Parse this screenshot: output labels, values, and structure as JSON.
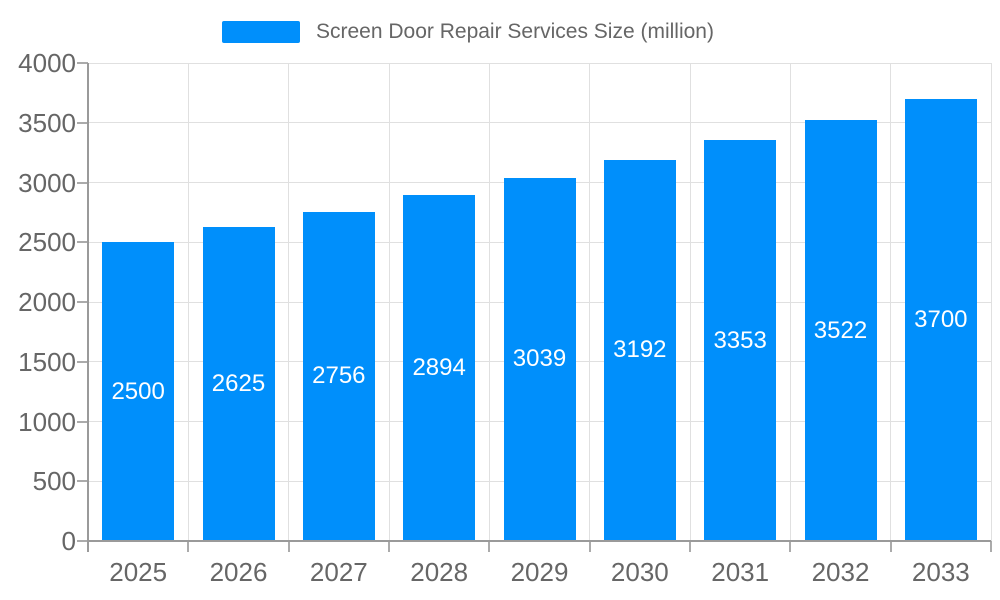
{
  "legend": {
    "series_label": "Screen Door Repair Services Size (million)"
  },
  "colors": {
    "bar": "#008FFB",
    "gridline": "#e0e0e0",
    "axis_line": "#9a9a9a",
    "tick": "#ababab",
    "axis_text": "#666666",
    "bar_label_text": "#ffffff",
    "background": "#ffffff"
  },
  "chart_data": {
    "type": "bar",
    "title": "Screen Door Repair Services Size (million)",
    "categories": [
      "2025",
      "2026",
      "2027",
      "2028",
      "2029",
      "2030",
      "2031",
      "2032",
      "2033"
    ],
    "series": [
      {
        "name": "Screen Door Repair Services Size (million)",
        "values": [
          2500,
          2625,
          2756,
          2894,
          3039,
          3192,
          3353,
          3522,
          3700
        ]
      }
    ],
    "xlabel": "",
    "ylabel": "",
    "ylim": [
      0,
      4000
    ],
    "ytick_step": 500,
    "yticks": [
      0,
      500,
      1000,
      1500,
      2000,
      2500,
      3000,
      3500,
      4000
    ],
    "grid": true,
    "legend_position": "top",
    "data_labels": "inside-center"
  }
}
